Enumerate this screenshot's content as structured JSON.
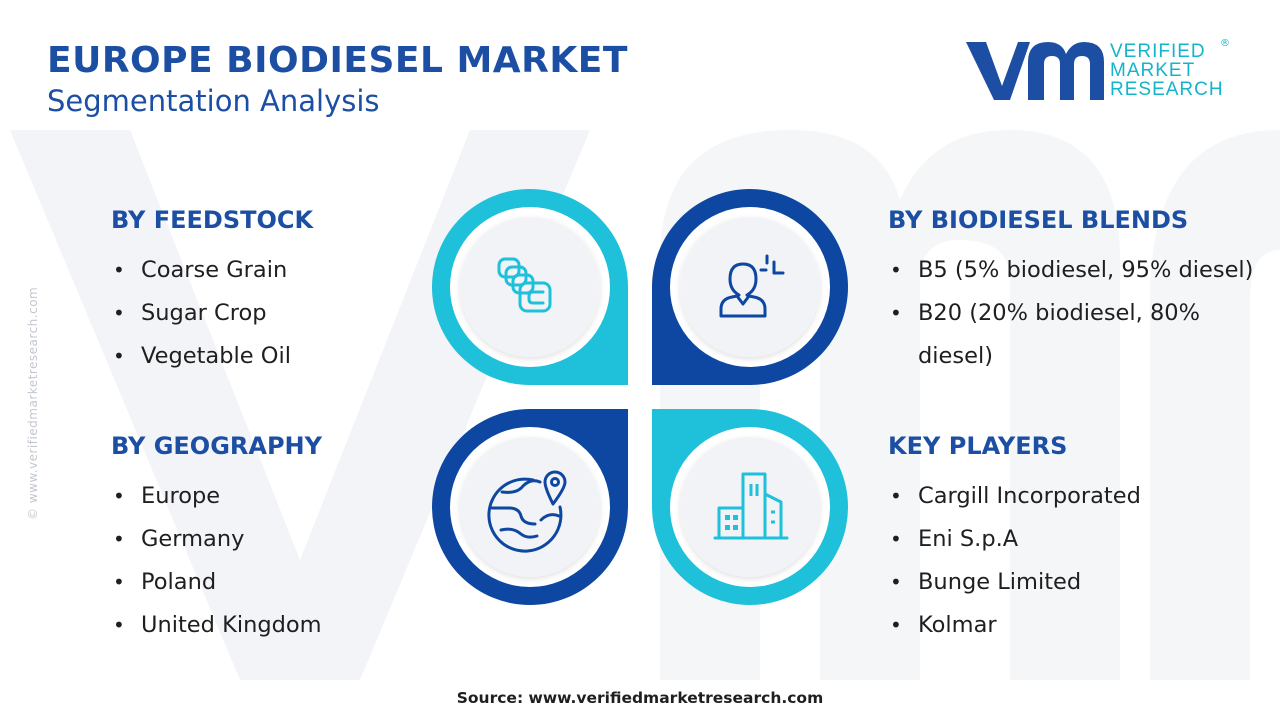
{
  "header": {
    "title": "EUROPE BIODIESEL MARKET",
    "subtitle": "Segmentation Analysis"
  },
  "logo": {
    "line1": "VERIFIED",
    "line2": "MARKET",
    "line3": "RESEARCH",
    "registered": "®"
  },
  "side_url": "© www.verifiedmarketresearch.com",
  "sections": {
    "feedstock": {
      "heading": "BY FEEDSTOCK",
      "items": [
        "Coarse Grain",
        "Sugar Crop",
        "Vegetable Oil"
      ]
    },
    "blends": {
      "heading": "BY BIODIESEL BLENDS",
      "items": [
        "B5 (5% biodiesel, 95% diesel)",
        "B20 (20% biodiesel, 80% diesel)"
      ]
    },
    "geography": {
      "heading": "BY GEOGRAPHY",
      "items": [
        "Europe",
        "Germany",
        "Poland",
        "United Kingdom"
      ]
    },
    "players": {
      "heading": "KEY PLAYERS",
      "items": [
        "Cargill Incorporated",
        "Eni S.p.A",
        "Bunge Limited",
        "Kolmar"
      ]
    }
  },
  "hub": {
    "icons": [
      "stacked-blocks-icon",
      "person-analytics-icon",
      "globe-location-icon",
      "city-buildings-icon"
    ]
  },
  "colors": {
    "brand_blue": "#1c4fa3",
    "dark_blue": "#0d47a1",
    "cyan": "#1ec0da",
    "circle_fill": "#f1f3f6"
  },
  "source": "Source: www.verifiedmarketresearch.com"
}
